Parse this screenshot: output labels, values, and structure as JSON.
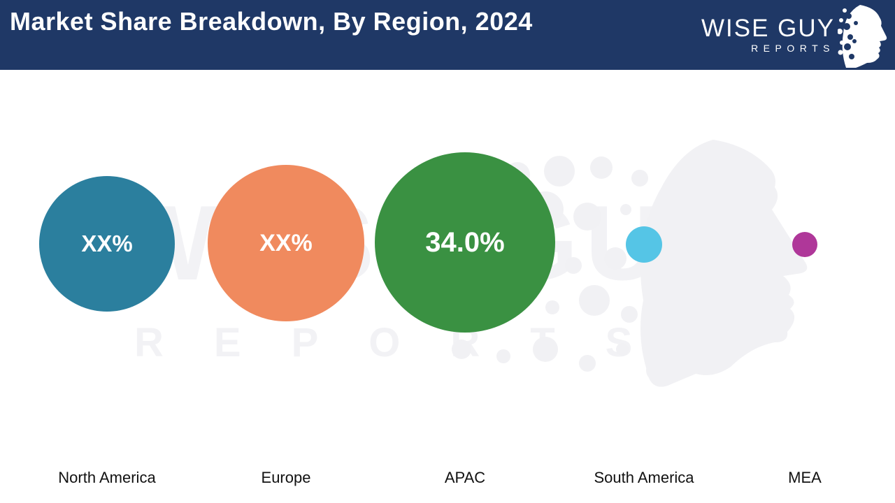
{
  "header": {
    "title": "Market Share Breakdown, By Region, 2024",
    "bg_color": "#1f3866",
    "logo": {
      "line1": "WISE GUY",
      "line2": "REPORTS"
    }
  },
  "watermark": {
    "line1": "WISE GUY",
    "line2": "REPORTS"
  },
  "chart_data": {
    "type": "scatter",
    "subtype": "bubble",
    "title": "Market Share Breakdown, By Region, 2024",
    "legend": "none",
    "axes": "none",
    "categories": [
      "North America",
      "Europe",
      "APAC",
      "South America",
      "MEA"
    ],
    "points": [
      {
        "region": "North America",
        "value_label": "XX%",
        "share_pct": null,
        "color": "#2b7f9e",
        "radius_px": 97
      },
      {
        "region": "Europe",
        "value_label": "XX%",
        "share_pct": null,
        "color": "#f08a5e",
        "radius_px": 112
      },
      {
        "region": "APAC",
        "value_label": "34.0%",
        "share_pct": 34.0,
        "color": "#3a9142",
        "radius_px": 129
      },
      {
        "region": "South America",
        "value_label": "",
        "share_pct": null,
        "color": "#55c5e6",
        "radius_px": 26
      },
      {
        "region": "MEA",
        "value_label": "",
        "share_pct": null,
        "color": "#af3799",
        "radius_px": 18
      }
    ]
  }
}
